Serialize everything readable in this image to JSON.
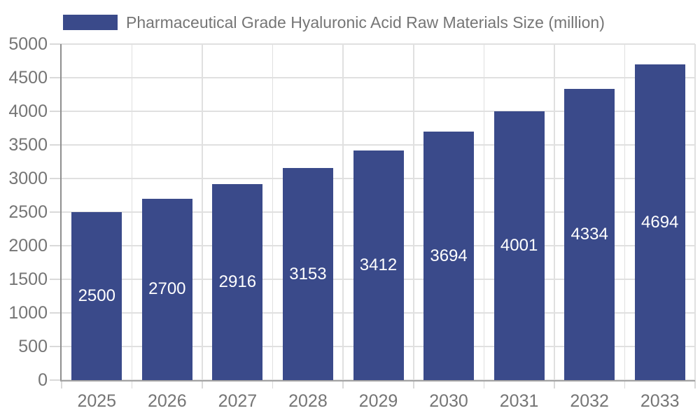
{
  "legend": {
    "label": "Pharmaceutical Grade Hyaluronic Acid Raw Materials Size (million)"
  },
  "colors": {
    "bar": "#3a4a8a",
    "grid": "#e0e0e0",
    "tick": "#d9d9d9",
    "axis_y": "#8f8f8f",
    "axis_x": "#a3a3a3",
    "label": "#757575",
    "value_label": "#ffffff",
    "background": "#ffffff"
  },
  "chart_data": {
    "type": "bar",
    "title": "Pharmaceutical Grade Hyaluronic Acid Raw Materials Size (million)",
    "categories": [
      "2025",
      "2026",
      "2027",
      "2028",
      "2029",
      "2030",
      "2031",
      "2032",
      "2033"
    ],
    "values": [
      2500,
      2700,
      2916,
      3153,
      3412,
      3694,
      4001,
      4334,
      4694
    ],
    "xlabel": "",
    "ylabel": "",
    "ylim": [
      0,
      5000
    ],
    "ytick_step": 500,
    "grid": true,
    "legend_position": "top-left",
    "value_label_position": "inside-center"
  }
}
